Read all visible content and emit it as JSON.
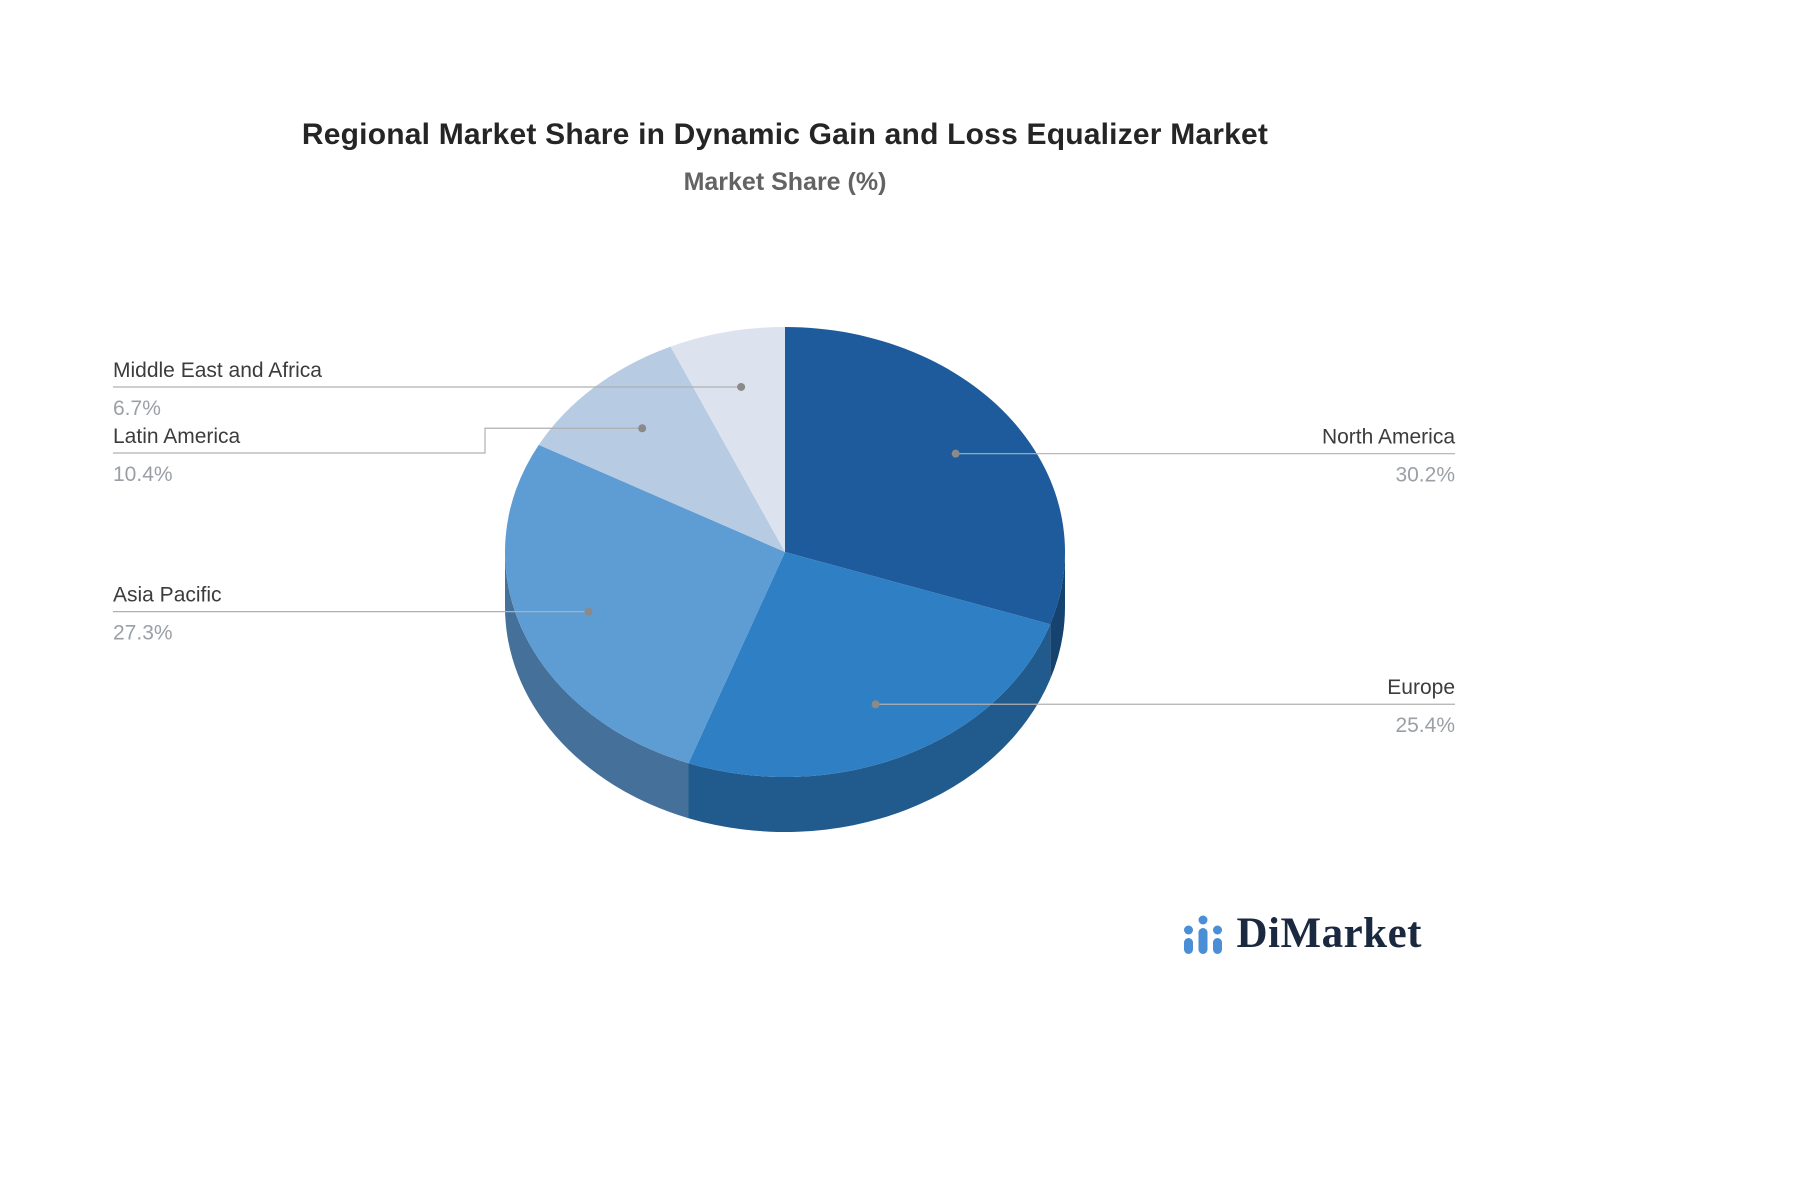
{
  "title": "Regional Market Share in Dynamic Gain and Loss Equalizer Market",
  "subtitle": "Market Share (%)",
  "brand": {
    "name": "DiMarket"
  },
  "chart_data": {
    "type": "pie",
    "title": "Regional Market Share in Dynamic Gain and Loss Equalizer Market",
    "subtitle": "Market Share (%)",
    "unit": "%",
    "effect": "3d",
    "start_angle_deg": 0,
    "direction": "clockwise",
    "legend_position": "none",
    "slices": [
      {
        "label": "North America",
        "value": 30.2,
        "display": "30.2%",
        "color": "#1E5B9C",
        "side": "right"
      },
      {
        "label": "Europe",
        "value": 25.4,
        "display": "25.4%",
        "color": "#2E7FC4",
        "side": "right"
      },
      {
        "label": "Asia Pacific",
        "value": 27.3,
        "display": "27.3%",
        "color": "#5E9CD4",
        "side": "left"
      },
      {
        "label": "Latin America",
        "value": 10.4,
        "display": "10.4%",
        "color": "#B7CBE3",
        "side": "left"
      },
      {
        "label": "Middle East and Africa",
        "value": 6.7,
        "display": "6.7%",
        "color": "#DCE3EF",
        "side": "left"
      }
    ],
    "style": {
      "label_color": "#3c3c3c",
      "value_color": "#9aa0a6",
      "leader_line_color": "#b0b0b0",
      "leader_dot_color": "#8a8a8a",
      "depth_shade": 0.72
    }
  }
}
